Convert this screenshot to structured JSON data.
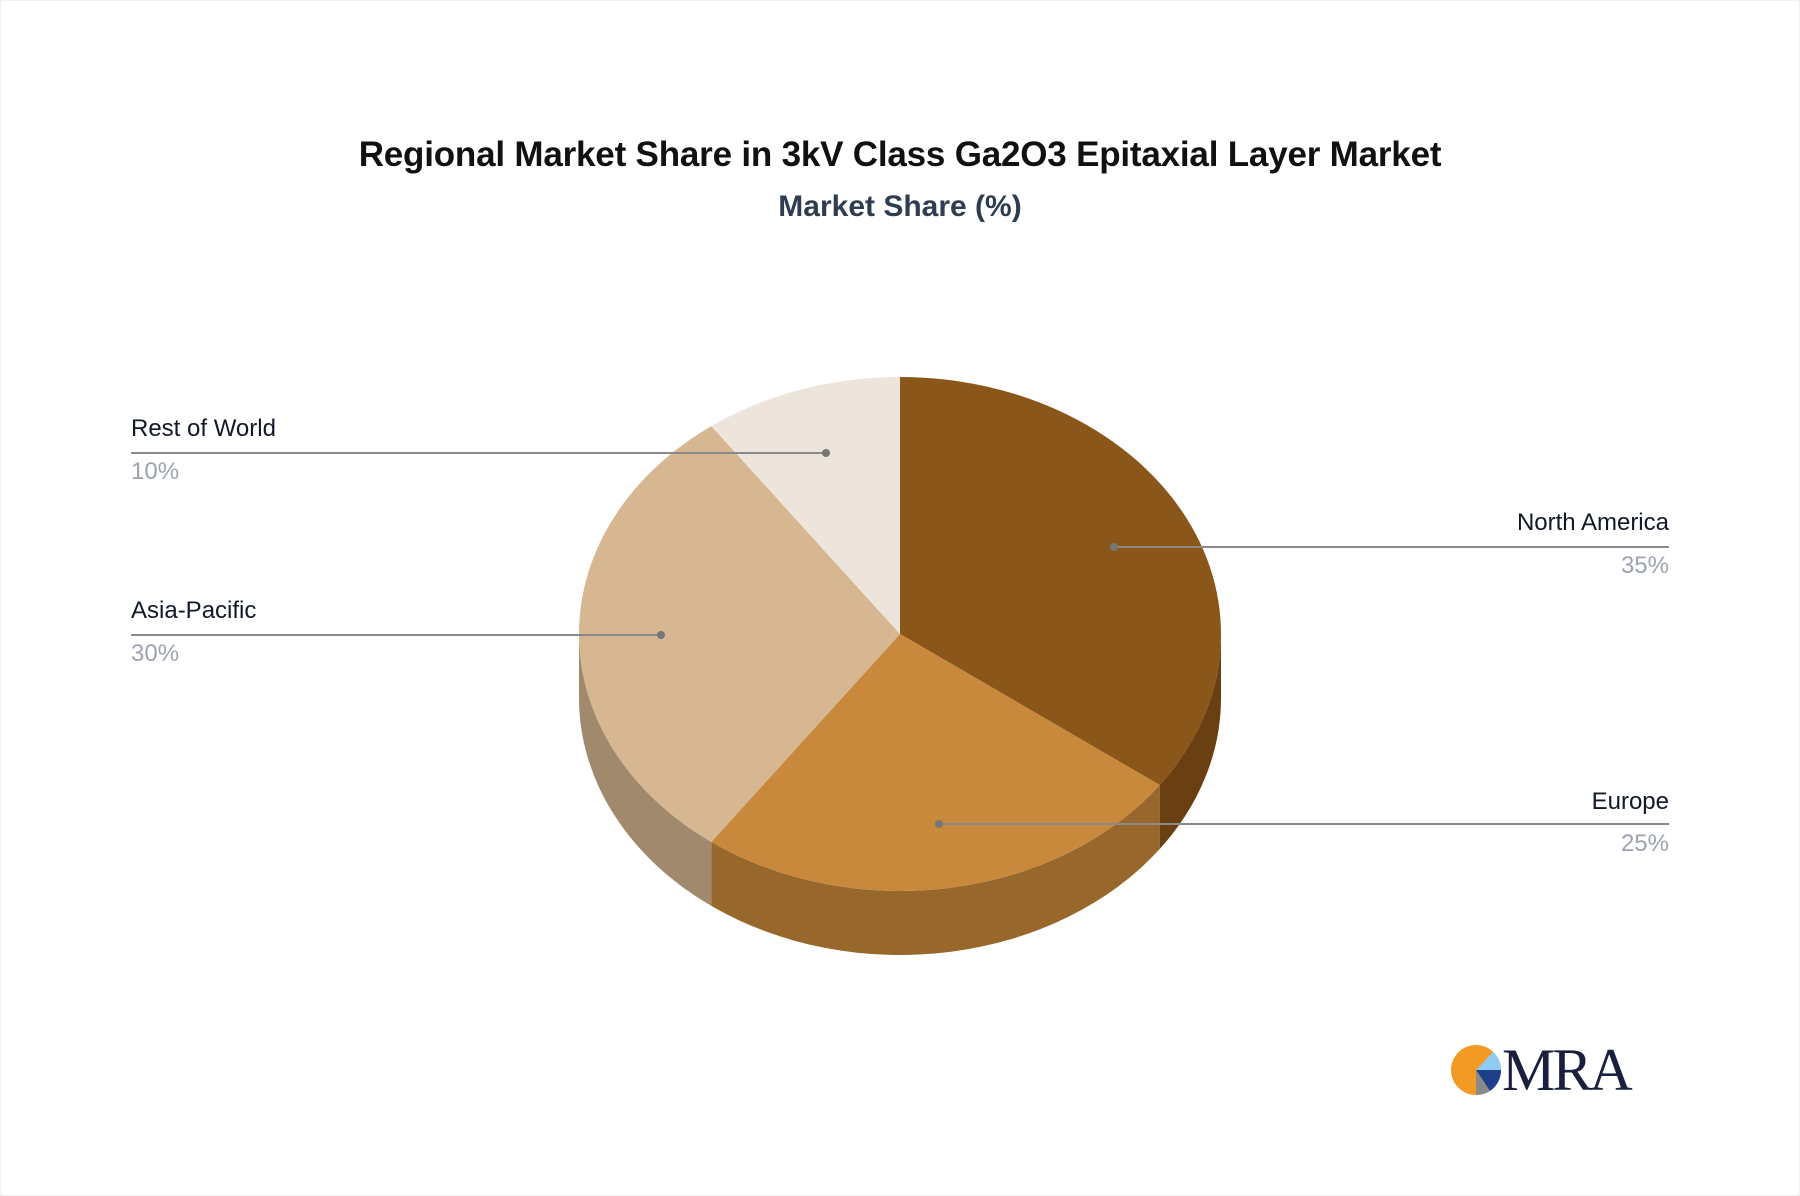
{
  "header": {
    "title": "Regional Market Share in 3kV Class Ga2O3 Epitaxial Layer Market",
    "subtitle": "Market Share (%)"
  },
  "slices": [
    {
      "label": "North America",
      "value_label": "35%",
      "color": "#8b5619",
      "side_color": "#6a4013"
    },
    {
      "label": "Europe",
      "value_label": "25%",
      "color": "#c9893c",
      "side_color": "#98672b"
    },
    {
      "label": "Asia-Pacific",
      "value_label": "30%",
      "color": "#d7b792",
      "side_color": "#a0896c"
    },
    {
      "label": "Rest of World",
      "value_label": "10%",
      "color": "#ede4db",
      "side_color": "#b5aca4"
    }
  ],
  "logo": {
    "text": "MRA"
  },
  "chart_data": {
    "type": "pie",
    "title": "Regional Market Share in 3kV Class Ga2O3 Epitaxial Layer Market",
    "subtitle": "Market Share (%)",
    "categories": [
      "North America",
      "Europe",
      "Asia-Pacific",
      "Rest of World"
    ],
    "values": [
      35,
      25,
      30,
      10
    ],
    "unit": "%",
    "style": "3d",
    "legend": "callout labels"
  }
}
